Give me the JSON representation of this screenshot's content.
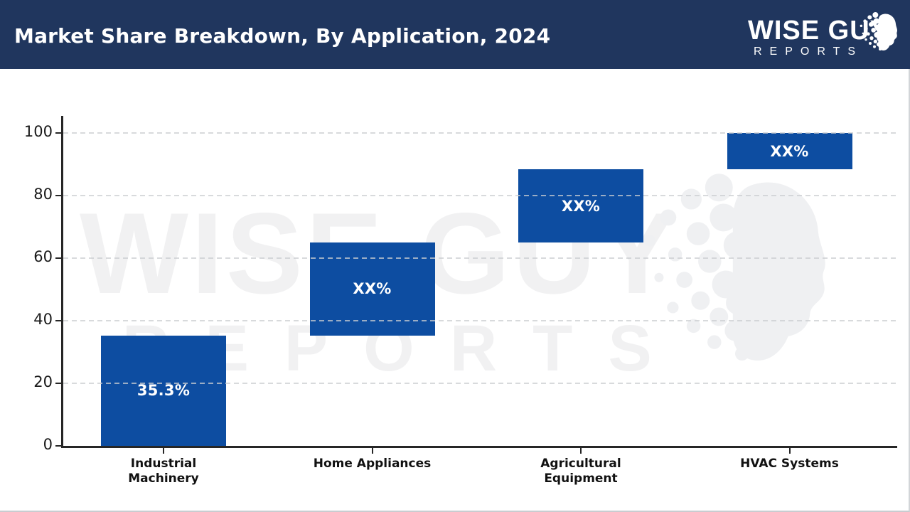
{
  "header": {
    "title": "Market Share Breakdown, By Application, 2024",
    "bg_color": "#20365e",
    "logo": {
      "line1": "WISE GUY",
      "line2": "REPORTS"
    }
  },
  "watermark": {
    "line1": "WISE GUY",
    "line2": "REPORTS"
  },
  "chart_data": {
    "type": "bar",
    "subtype": "floating-waterfall-breakdown",
    "title": "Market Share Breakdown, By Application, 2024",
    "categories": [
      [
        "Industrial",
        "Machinery"
      ],
      [
        "Home Appliances"
      ],
      [
        "Agricultural",
        "Equipment"
      ],
      [
        "HVAC Systems"
      ]
    ],
    "bars": [
      {
        "category": "Industrial Machinery",
        "start": 0,
        "end": 35.3,
        "label": "35.3%"
      },
      {
        "category": "Home Appliances",
        "start": 35.3,
        "end": 65.0,
        "label": "XX%"
      },
      {
        "category": "Agricultural Equipment",
        "start": 65.0,
        "end": 88.3,
        "label": "XX%"
      },
      {
        "category": "HVAC Systems",
        "start": 88.3,
        "end": 100,
        "label": "XX%"
      }
    ],
    "ylim": [
      0,
      100
    ],
    "yticks": [
      0,
      20,
      40,
      60,
      80,
      100
    ],
    "xlabel": "",
    "ylabel": "",
    "legend": "none",
    "grid": {
      "axis": "y",
      "style": "dashed",
      "color": "#d9dbde"
    },
    "bar_color": "#0d4da1",
    "bar_label_color": "#ffffff",
    "axis_color": "#262626"
  }
}
